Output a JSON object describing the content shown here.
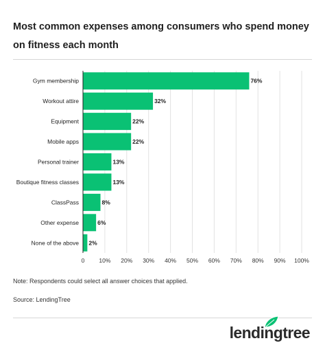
{
  "title": "Most common expenses among consumers who spend money on fitness each month",
  "note": "Note: Respondents could select all answer choices that applied.",
  "source": "Source: LendingTree",
  "logo_text": "lendingtree",
  "colors": {
    "bar": "#0ac174",
    "grid": "#e2e2e2",
    "axis": "#222222",
    "logo_leaf": "#0ac174"
  },
  "chart_data": {
    "type": "bar",
    "orientation": "horizontal",
    "categories": [
      "Gym membership",
      "Workout attire",
      "Equipment",
      "Mobile apps",
      "Personal trainer",
      "Boutique fitness classes",
      "ClassPass",
      "Other expense",
      "None of the above"
    ],
    "values": [
      76,
      32,
      22,
      22,
      13,
      13,
      8,
      6,
      2
    ],
    "data_labels": [
      "76%",
      "32%",
      "22%",
      "22%",
      "13%",
      "13%",
      "8%",
      "6%",
      "2%"
    ],
    "x_ticks": [
      0,
      10,
      20,
      30,
      40,
      50,
      60,
      70,
      80,
      90,
      100
    ],
    "x_tick_labels": [
      "0",
      "10%",
      "20%",
      "30%",
      "40%",
      "50%",
      "60%",
      "70%",
      "80%",
      "90%",
      "100%"
    ],
    "xlim": [
      0,
      100
    ],
    "grid": true,
    "xlabel": "",
    "ylabel": ""
  }
}
